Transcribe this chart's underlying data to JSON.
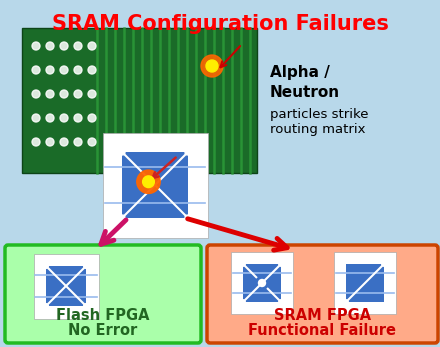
{
  "background_color": "#b8d8ea",
  "title": "SRAM Configuration Failures",
  "title_color": "#ff0000",
  "title_fontsize": 15,
  "alpha_neutron_bold": "Alpha /\nNeutron",
  "alpha_neutron_normal": "particles strike\nrouting matrix",
  "green_box_color": "#aaffaa",
  "green_box_border": "#22bb22",
  "green_text_line1": "Flash FPGA",
  "green_text_line2": "No Error",
  "green_text_color": "#226622",
  "red_box_color": "#ffaa88",
  "red_box_border": "#cc4400",
  "red_text_line1": "SRAM FPGA",
  "red_text_line2": "Functional Failure",
  "red_text_color": "#cc0000",
  "blue_color": "#3a6fc4",
  "pcb_green_dark": "#1a6b28",
  "pcb_green_light": "#2d9e3a",
  "white_color": "#ffffff",
  "arrow_magenta": "#cc1166",
  "arrow_red": "#dd0000"
}
